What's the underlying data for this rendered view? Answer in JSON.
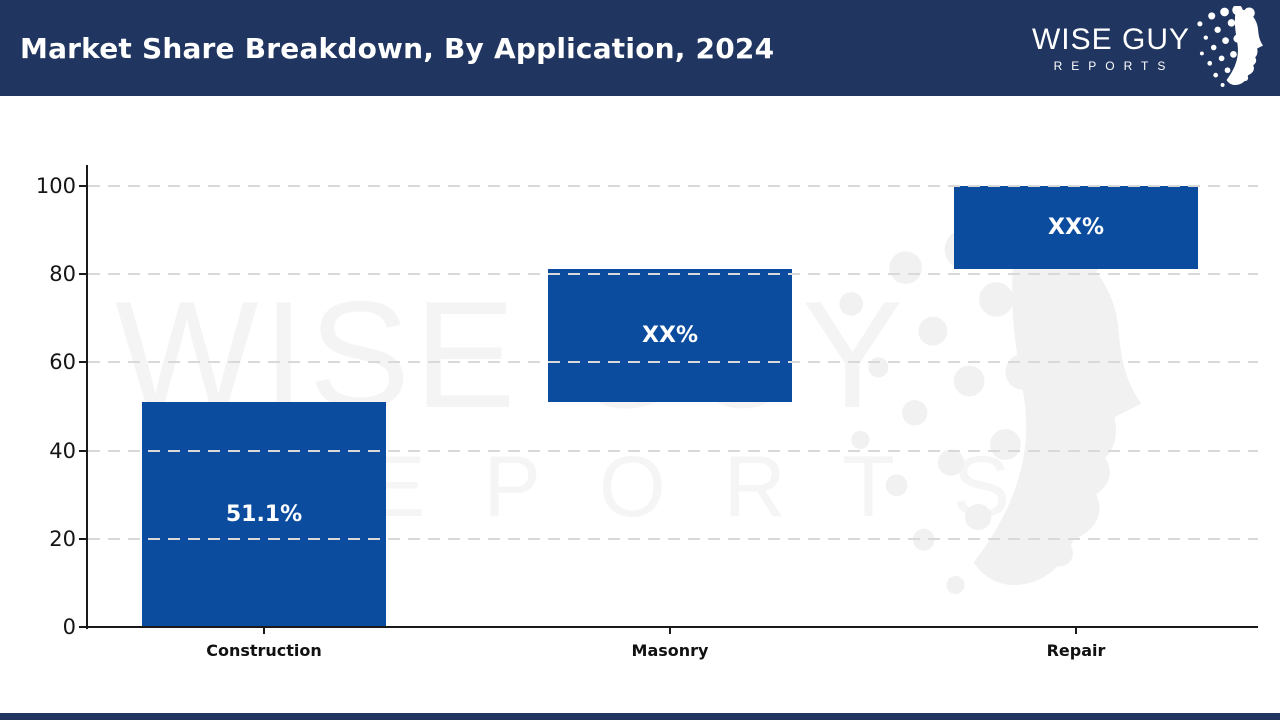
{
  "header": {
    "title": "Market Share Breakdown, By Application, 2024",
    "bg_color": "#20355f",
    "logo": {
      "line1": "WISE GUY",
      "line2": "REPORTS"
    }
  },
  "watermark": {
    "line1": "WISE GUY",
    "line2": "REPORTS"
  },
  "chart_data": {
    "type": "bar",
    "subtype": "waterfall",
    "title": "Market Share Breakdown, By Application, 2024",
    "categories": [
      "Construction",
      "Masonry",
      "Repair"
    ],
    "segments": [
      {
        "category": "Construction",
        "start": 0,
        "end": 51.1,
        "label": "51.1%"
      },
      {
        "category": "Masonry",
        "start": 51.1,
        "end": 81.2,
        "label": "XX%"
      },
      {
        "category": "Repair",
        "start": 81.2,
        "end": 100,
        "label": "XX%"
      }
    ],
    "yticks": [
      0,
      20,
      40,
      60,
      80,
      100
    ],
    "ylim": [
      0,
      104.8
    ],
    "grid": true,
    "legend": false,
    "bar_color": "#0b4c9f",
    "bar_label_color": "#ffffff",
    "gridline_color": "#d9d9d9",
    "axis_color": "#1a1a1a"
  }
}
